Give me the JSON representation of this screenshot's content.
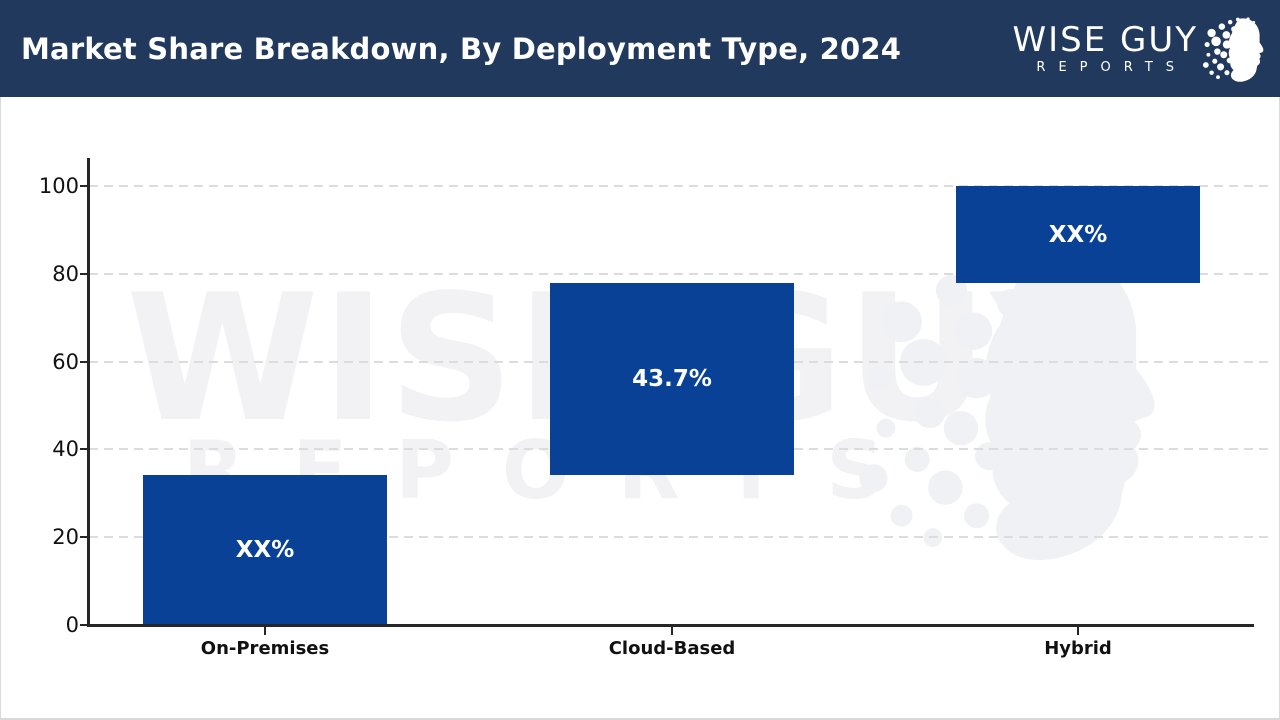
{
  "header": {
    "title": "Market Share Breakdown, By Deployment Type, 2024",
    "logo": {
      "text1": "WISE GUY",
      "text2": "REPORTS"
    }
  },
  "watermark": {
    "text1": "WISE GUY",
    "text2": "REPORTS"
  },
  "colors": {
    "header_bg": "#21395c",
    "bar": "#084196",
    "bar_label": "#ffffff",
    "grid": "#dcdcdc",
    "axis": "#262626",
    "watermark": "#f2f2f4",
    "page_border": "#d9d9d9"
  },
  "chart_data": {
    "type": "bar",
    "subtype": "floating-waterfall",
    "title": "Market Share Breakdown, By Deployment Type, 2024",
    "xlabel": "",
    "ylabel": "",
    "categories": [
      "On-Premises",
      "Cloud-Based",
      "Hybrid"
    ],
    "segments": [
      {
        "category": "On-Premises",
        "start": 0,
        "end": 34.2,
        "value": 34.2,
        "label": "XX%"
      },
      {
        "category": "Cloud-Based",
        "start": 34.2,
        "end": 77.9,
        "value": 43.7,
        "label": "43.7%"
      },
      {
        "category": "Hybrid",
        "start": 77.9,
        "end": 100,
        "value": 22.1,
        "label": "XX%"
      }
    ],
    "yticks": [
      0,
      20,
      40,
      60,
      80,
      100
    ],
    "ylim": [
      0,
      106
    ],
    "grid": "horizontal-dashed",
    "legend": "none"
  }
}
